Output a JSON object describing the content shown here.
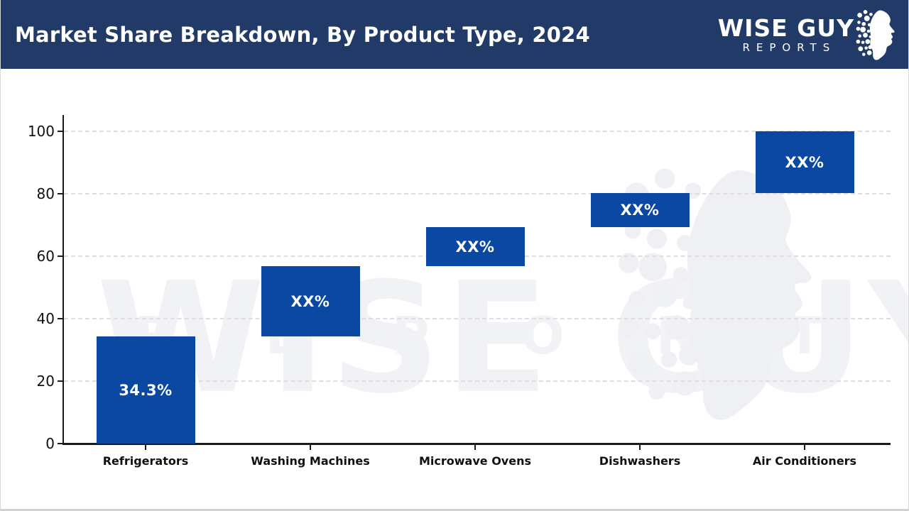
{
  "header": {
    "title": "Market Share Breakdown, By Product Type, 2024",
    "logo": {
      "wordmark": "WISE GUY",
      "subtext": "REPORTS",
      "icon": "dotted-face-profile-icon"
    }
  },
  "watermark": {
    "line1": "WISE GUY",
    "line2": "R E P O R T S",
    "icon": "dotted-face-profile-watermark"
  },
  "colors": {
    "header_bg": "#223a67",
    "bar": "#0b48a2",
    "bar_label": "#ffffff",
    "grid": "#dedede",
    "axis": "#1a1a1a",
    "text": "#111111",
    "watermark": "#f1f2f5",
    "bottom_border": "#d2d2d2"
  },
  "chart_data": {
    "type": "bar",
    "subtype": "waterfall",
    "title": "Market Share Breakdown, By Product Type, 2024",
    "categories": [
      "Refrigerators",
      "Washing Machines",
      "Microwave Ovens",
      "Dishwashers",
      "Air Conditioners"
    ],
    "segments": [
      {
        "category": "Refrigerators",
        "label": "34.3%",
        "start": 0,
        "end": 34.3
      },
      {
        "category": "Washing Machines",
        "label": "XX%",
        "start": 34.3,
        "end": 57.0
      },
      {
        "category": "Microwave Ovens",
        "label": "XX%",
        "start": 57.0,
        "end": 69.3
      },
      {
        "category": "Dishwashers",
        "label": "XX%",
        "start": 69.3,
        "end": 80.3
      },
      {
        "category": "Air Conditioners",
        "label": "XX%",
        "start": 80.3,
        "end": 100.0
      }
    ],
    "y_ticks": [
      0,
      20,
      40,
      60,
      80,
      100
    ],
    "ylim": [
      0,
      105
    ],
    "xlabel": "",
    "ylabel": "",
    "grid": "horizontal-dashed",
    "legend": "none"
  }
}
